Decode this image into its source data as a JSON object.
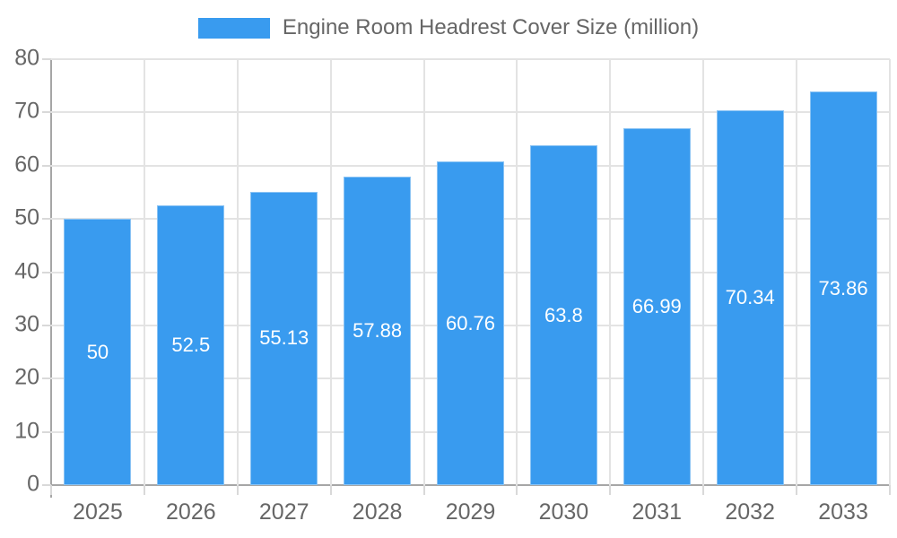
{
  "chart_data": {
    "type": "bar",
    "title": "Engine Room Headrest Cover Size (million)",
    "categories": [
      "2025",
      "2026",
      "2027",
      "2028",
      "2029",
      "2030",
      "2031",
      "2032",
      "2033"
    ],
    "values": [
      50,
      52.5,
      55.13,
      57.88,
      60.76,
      63.8,
      66.99,
      70.34,
      73.86
    ],
    "value_labels": [
      "50",
      "52.5",
      "55.13",
      "57.88",
      "60.76",
      "63.8",
      "66.99",
      "70.34",
      "73.86"
    ],
    "xlabel": "",
    "ylabel": "",
    "ylim": [
      0,
      80
    ],
    "yticks": [
      0,
      10,
      20,
      30,
      40,
      50,
      60,
      70,
      80
    ],
    "ytick_labels": [
      "0",
      "10",
      "20",
      "30",
      "40",
      "50",
      "60",
      "70",
      "80"
    ],
    "grid": true,
    "legend_position": "top",
    "colors": {
      "bar": "#399BEF",
      "bar_edge": "#8AC3F4",
      "value_label": "#ffffff",
      "tick_text": "#666666",
      "grid_line": "#e3e3e3",
      "axis_line": "#a6a6a6",
      "tick_mark": "#d9d9d9",
      "background": "#ffffff"
    }
  }
}
